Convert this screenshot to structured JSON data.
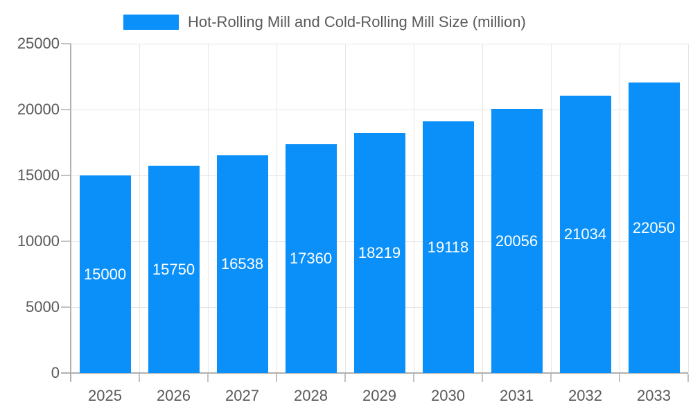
{
  "legend": {
    "label": "Hot-Rolling Mill and Cold-Rolling Mill Size (million)"
  },
  "chart_data": {
    "type": "bar",
    "title": "Hot-Rolling Mill and Cold-Rolling Mill Size (million)",
    "categories": [
      "2025",
      "2026",
      "2027",
      "2028",
      "2029",
      "2030",
      "2031",
      "2032",
      "2033"
    ],
    "values": [
      15000,
      15750,
      16538,
      17360,
      18219,
      19118,
      20056,
      21034,
      22050
    ],
    "xlabel": "",
    "ylabel": "",
    "ylim": [
      0,
      25000
    ],
    "yticks": [
      0,
      5000,
      10000,
      15000,
      20000,
      25000
    ],
    "grid": true,
    "legend_position": "top",
    "data_labels": "inside-center",
    "colors": {
      "bar": "#0a90f8",
      "bar_label_text": "#ffffff",
      "axis_text": "#595959",
      "gridline": "#e6e6e6",
      "axis_line": "#b0b0b0",
      "background": "#ffffff"
    }
  }
}
